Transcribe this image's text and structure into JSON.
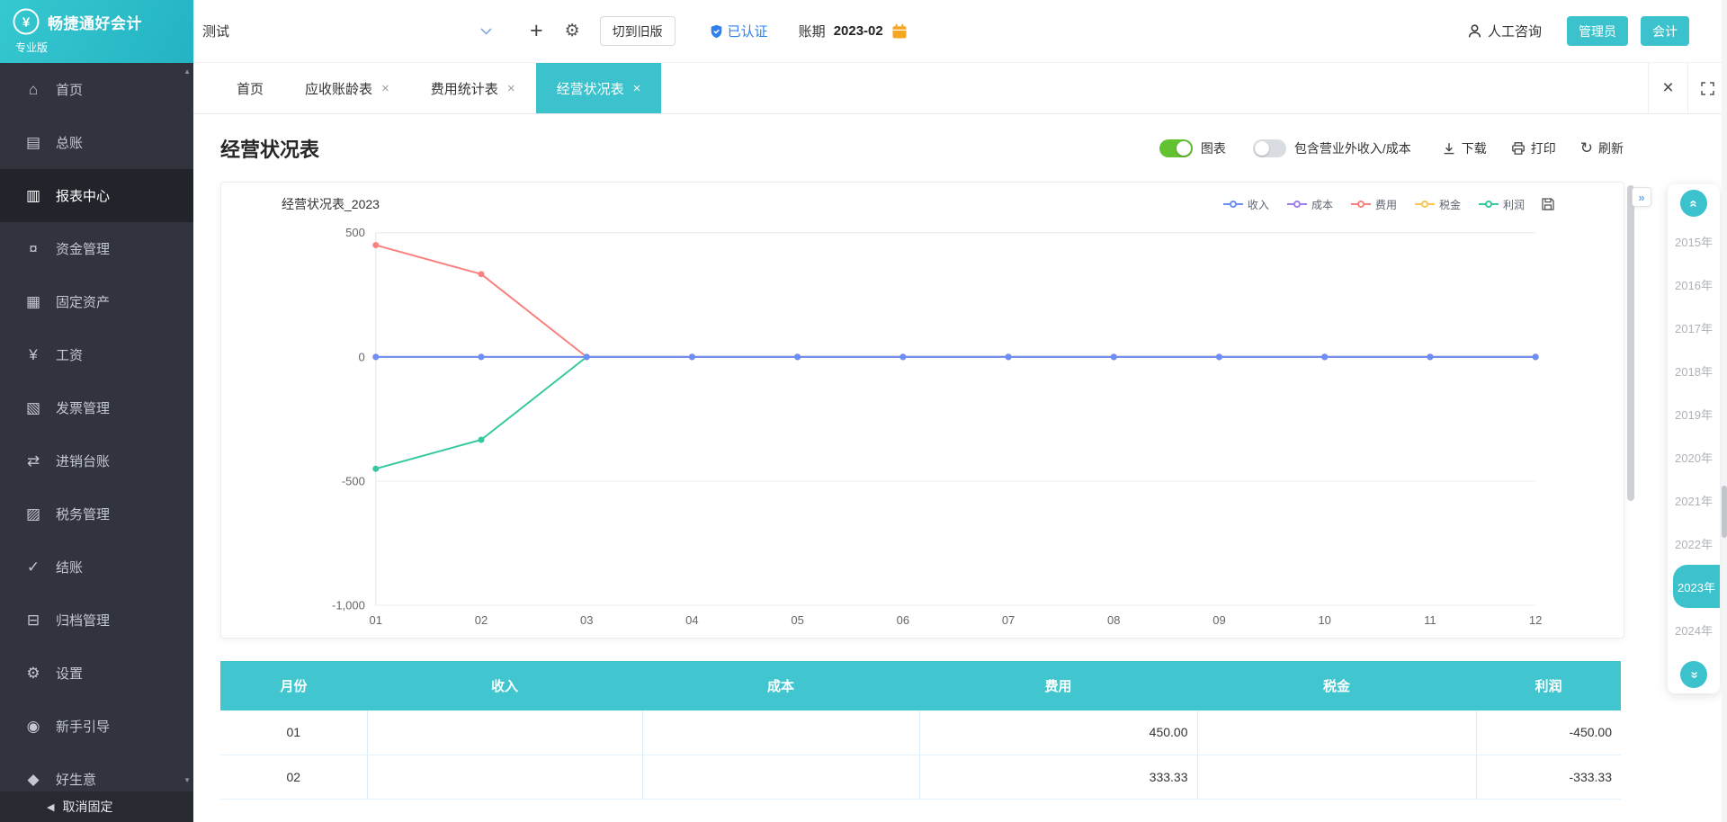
{
  "logo": {
    "title": "畅捷通好会计",
    "subtitle": "专业版"
  },
  "topbar": {
    "company_selector": {
      "value": "测试"
    },
    "add_icon": "+",
    "switch_version_button": "切到旧版",
    "certified_badge": {
      "label": "已认证"
    },
    "period": {
      "label": "账期",
      "value": "2023-02"
    },
    "consult": {
      "label": "人工咨询"
    },
    "role_admin": "管理员",
    "role_accountant": "会计"
  },
  "sidebar": {
    "items": [
      {
        "name": "home",
        "label": "首页",
        "icon": "home-icon",
        "glyph": "⌂"
      },
      {
        "name": "general-ledger",
        "label": "总账",
        "icon": "ledger-icon",
        "glyph": "▤"
      },
      {
        "name": "report-center",
        "label": "报表中心",
        "icon": "report-icon",
        "glyph": "▥",
        "active": true
      },
      {
        "name": "funds",
        "label": "资金管理",
        "icon": "funds-icon",
        "glyph": "¤"
      },
      {
        "name": "fixed-assets",
        "label": "固定资产",
        "icon": "fixed-assets-icon",
        "glyph": "▦"
      },
      {
        "name": "payroll",
        "label": "工资",
        "icon": "payroll-icon",
        "glyph": "¥"
      },
      {
        "name": "invoice",
        "label": "发票管理",
        "icon": "invoice-icon",
        "glyph": "▧"
      },
      {
        "name": "purchase-sales",
        "label": "进销台账",
        "icon": "purchase-sales-icon",
        "glyph": "⇄"
      },
      {
        "name": "tax",
        "label": "税务管理",
        "icon": "tax-icon",
        "glyph": "▨"
      },
      {
        "name": "closing",
        "label": "结账",
        "icon": "closing-icon",
        "glyph": "✓"
      },
      {
        "name": "archive",
        "label": "归档管理",
        "icon": "archive-icon",
        "glyph": "⊟"
      },
      {
        "name": "settings",
        "label": "设置",
        "icon": "settings-icon",
        "glyph": "⚙"
      },
      {
        "name": "beginner-guide",
        "label": "新手引导",
        "icon": "guide-icon",
        "glyph": "◉"
      },
      {
        "name": "product",
        "label": "好生意",
        "icon": "product-icon",
        "glyph": "◆",
        "partial": true
      }
    ],
    "footer": {
      "label": "取消固定"
    }
  },
  "tabs": [
    {
      "name": "home",
      "label": "首页",
      "closable": false
    },
    {
      "name": "receivable-aging",
      "label": "应收账龄表",
      "closable": true
    },
    {
      "name": "expense-statistics",
      "label": "费用统计表",
      "closable": true
    },
    {
      "name": "operating-status",
      "label": "经营状况表",
      "closable": true,
      "active": true
    }
  ],
  "page": {
    "title": "经营状况表",
    "chart_toggle": {
      "label": "图表",
      "on": true
    },
    "include_toggle": {
      "label": "包含营业外收入/成本",
      "on": false
    },
    "actions": [
      {
        "name": "download",
        "label": "下载",
        "icon": "download-icon"
      },
      {
        "name": "print",
        "label": "打印",
        "icon": "print-icon"
      },
      {
        "name": "refresh",
        "label": "刷新",
        "icon": "refresh-icon"
      }
    ]
  },
  "chart_data": {
    "type": "line",
    "title": "经营状况表_2023",
    "categories": [
      "01",
      "02",
      "03",
      "04",
      "05",
      "06",
      "07",
      "08",
      "09",
      "10",
      "11",
      "12"
    ],
    "series": [
      {
        "name": "收入",
        "color": "#6e8ef7",
        "values": [
          0,
          0,
          0,
          0,
          0,
          0,
          0,
          0,
          0,
          0,
          0,
          0
        ]
      },
      {
        "name": "成本",
        "color": "#9f7ef0",
        "values": [
          0,
          0,
          0,
          0,
          0,
          0,
          0,
          0,
          0,
          0,
          0,
          0
        ]
      },
      {
        "name": "费用",
        "color": "#f98280",
        "values": [
          450,
          333.33,
          0,
          0,
          0,
          0,
          0,
          0,
          0,
          0,
          0,
          0
        ]
      },
      {
        "name": "税金",
        "color": "#f8c653",
        "values": [
          0,
          0,
          0,
          0,
          0,
          0,
          0,
          0,
          0,
          0,
          0,
          0
        ]
      },
      {
        "name": "利润",
        "color": "#35c9a0",
        "values": [
          -450,
          -333.33,
          0,
          0,
          0,
          0,
          0,
          0,
          0,
          0,
          0,
          0
        ]
      }
    ],
    "y_ticks": [
      {
        "value": 500,
        "label": "500"
      },
      {
        "value": 0,
        "label": "0"
      },
      {
        "value": -500,
        "label": "-500"
      },
      {
        "value": -1000,
        "label": "-1,000"
      }
    ],
    "ylim": [
      -1000,
      500
    ],
    "legend_position": "top-right",
    "grid": true
  },
  "table": {
    "columns": [
      "月份",
      "收入",
      "成本",
      "费用",
      "税金",
      "利润"
    ],
    "rows": [
      [
        "01",
        "",
        "",
        "450.00",
        "",
        "-450.00"
      ],
      [
        "02",
        "",
        "",
        "333.33",
        "",
        "-333.33"
      ]
    ]
  },
  "year_panel": {
    "years": [
      "2015年",
      "2016年",
      "2017年",
      "2018年",
      "2019年",
      "2020年",
      "2021年",
      "2022年",
      "2023年",
      "2024年"
    ],
    "active": "2023年"
  },
  "colors": {
    "accent_teal": "#3bc2cd",
    "table_header_teal": "#41c6d0",
    "sidebar_bg": "#31333d",
    "toggle_on_green": "#62c232",
    "certified_blue": "#2f80ed",
    "calendar_orange": "#f5a623"
  }
}
